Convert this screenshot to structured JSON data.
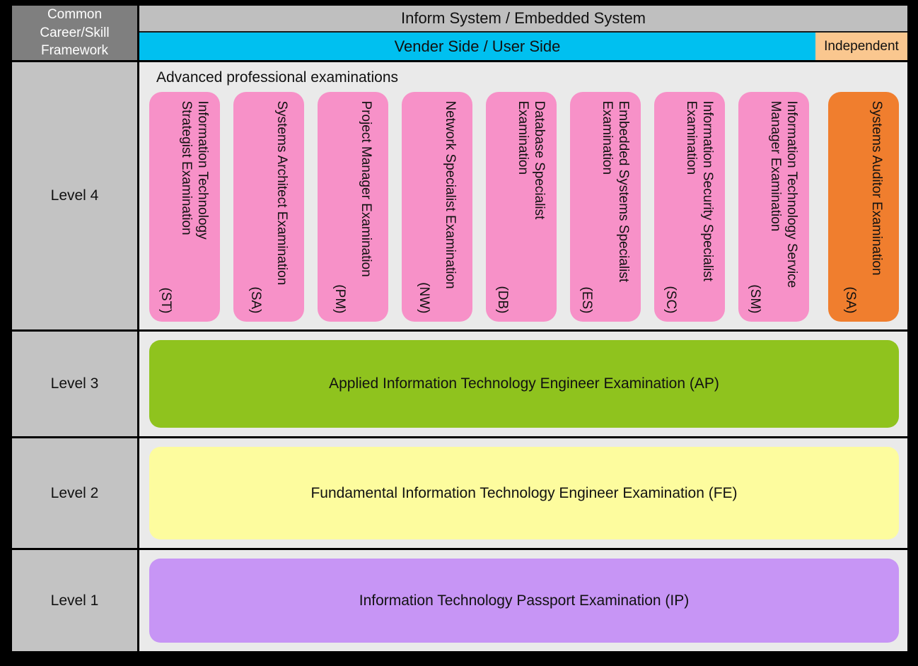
{
  "colors": {
    "corner_bg": "#7F7F7F",
    "header_bg": "#BFBFBF",
    "level_cell_bg": "#C3C3C3",
    "area_bg": "#EAEAEA",
    "vender_cyan": "#00C0F0",
    "independent_peach": "#FAC78F",
    "exam_pink": "#F791C8",
    "exam_orange": "#F07E2E",
    "level3_green": "#8FC31E",
    "level2_yellow": "#FDFC9E",
    "level1_purple": "#C795F5"
  },
  "corner": {
    "label": "Common\nCareer/Skill\nFramework"
  },
  "header": {
    "system_label": "Inform System / Embedded System",
    "side_label": "Vender Side / User Side",
    "independent_label": "Independent"
  },
  "levels": {
    "level4": {
      "label": "Level 4",
      "section_title": "Advanced professional examinations",
      "exams": [
        {
          "name": "Information Technology\nStrategist Examination",
          "code": "(ST)"
        },
        {
          "name": "Systems Architect Examination",
          "code": "(SA)"
        },
        {
          "name": "Project Manager Examination",
          "code": "(PM)"
        },
        {
          "name": "Network Specialist Examination",
          "code": "(NW)"
        },
        {
          "name": "Database Specialist\nExamination",
          "code": "(DB)"
        },
        {
          "name": "Embedded Systems Specialist\nExamination",
          "code": "(ES)"
        },
        {
          "name": "Information Security Specialist\nExamination",
          "code": "(SC)"
        },
        {
          "name": "Information Technology Service\nManager Examination",
          "code": "(SM)"
        },
        {
          "name": "Systems Auditor Examination",
          "code": "(SA)"
        }
      ]
    },
    "level3": {
      "label": "Level 3",
      "exam_label": "Applied Information Technology Engineer Examination (AP)"
    },
    "level2": {
      "label": "Level 2",
      "exam_label": "Fundamental Information Technology Engineer Examination (FE)"
    },
    "level1": {
      "label": "Level 1",
      "exam_label": "Information Technology Passport Examination (IP)"
    }
  }
}
